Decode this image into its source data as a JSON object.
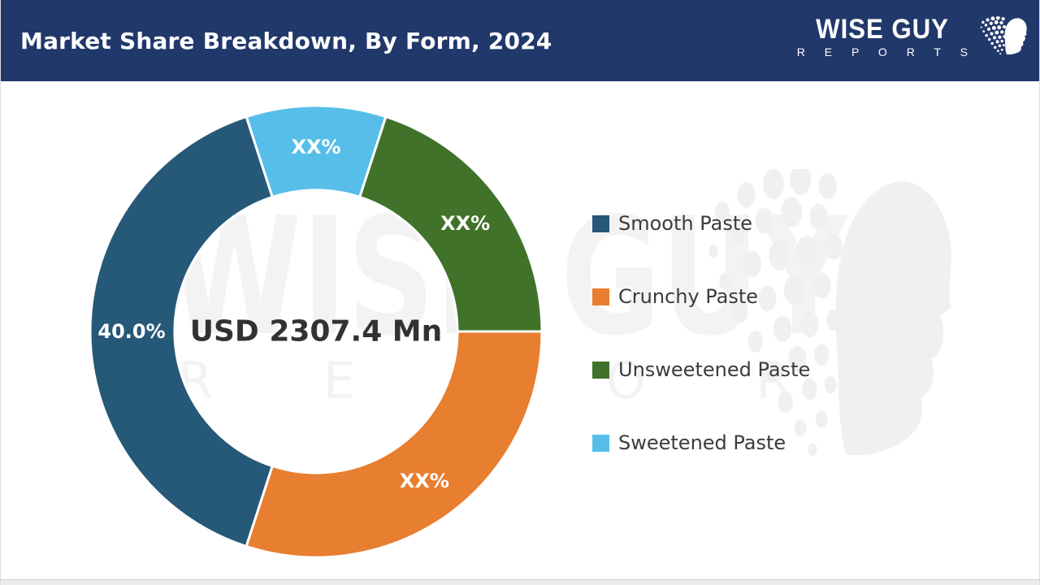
{
  "header": {
    "title": "Market Share Breakdown, By Form, 2024",
    "background_color": "#21386B",
    "logo": {
      "name": "WISE GUY",
      "sub": "R E P O R T S"
    }
  },
  "watermark": {
    "brand": "WISE GUY",
    "brand_sub": "R E P O R T S"
  },
  "chart_data": {
    "type": "donut",
    "title": "Market Share Breakdown, By Form, 2024",
    "center_label": "USD 2307.4 Mn",
    "total": {
      "value": 2307.4,
      "units": "USD Mn"
    },
    "rotation_deg": -18,
    "direction": "clockwise",
    "legend_position": "right",
    "segments": [
      {
        "label": "Smooth Paste",
        "pct": 40,
        "display": "40.0%",
        "color": "#265878"
      },
      {
        "label": "Crunchy Paste",
        "pct": 30,
        "display": "XX%",
        "color": "#E87E30"
      },
      {
        "label": "Unsweetened Paste",
        "pct": 20,
        "display": "XX%",
        "color": "#40722A"
      },
      {
        "label": "Sweetened Paste",
        "pct": 10,
        "display": "XX%",
        "color": "#56BEE8"
      }
    ]
  }
}
